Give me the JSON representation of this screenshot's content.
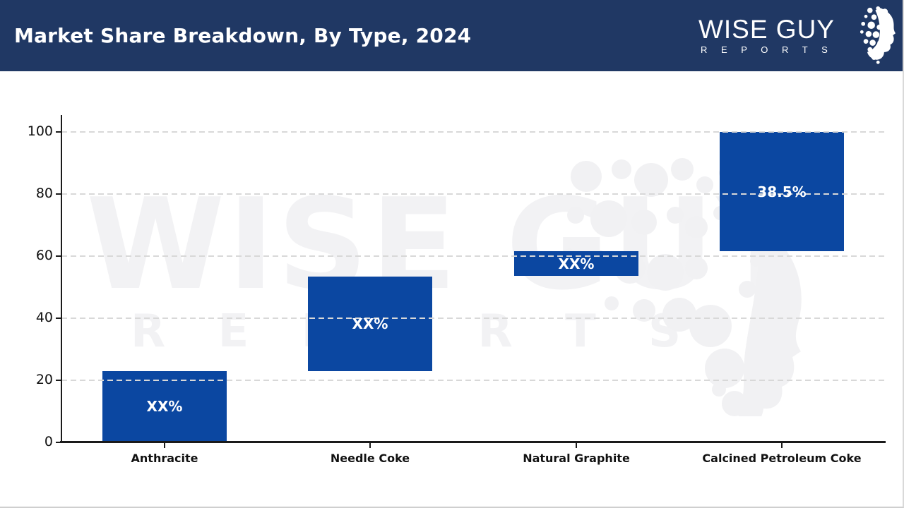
{
  "header": {
    "title": "Market Share Breakdown, By Type, 2024",
    "logo": {
      "line1": "WISE GUY",
      "line2": "R E P O R T S"
    }
  },
  "watermark": {
    "line1": "WISE GUY",
    "line2": "R E P O R T S"
  },
  "chart_data": {
    "type": "bar",
    "variant": "floating-segment-bars",
    "title": "Market Share Breakdown, By Type, 2024",
    "categories": [
      "Anthracite",
      "Needle Coke",
      "Natural Graphite",
      "Calcined Petroleum Coke"
    ],
    "segments": [
      {
        "category": "Anthracite",
        "start": 0,
        "end": 23,
        "label": "XX%"
      },
      {
        "category": "Needle Coke",
        "start": 23,
        "end": 53.5,
        "label": "XX%"
      },
      {
        "category": "Natural Graphite",
        "start": 53.5,
        "end": 61.5,
        "label": "XX%"
      },
      {
        "category": "Calcined Petroleum Coke",
        "start": 61.5,
        "end": 100,
        "label": "38.5%"
      }
    ],
    "yticks": [
      0,
      20,
      40,
      60,
      80,
      100
    ],
    "ylim": [
      0,
      105.5
    ],
    "xlabel": "",
    "ylabel": "",
    "grid": "horizontal-dashed-over-bars",
    "legend": "none",
    "bar_color": "#0B47A1"
  },
  "colors": {
    "header_bg": "#203864",
    "bar": "#0B47A1",
    "grid": "#D8D8D8",
    "axis": "#1A1A1A",
    "watermark": "#F2F2F4",
    "background": "#FFFFFF"
  }
}
